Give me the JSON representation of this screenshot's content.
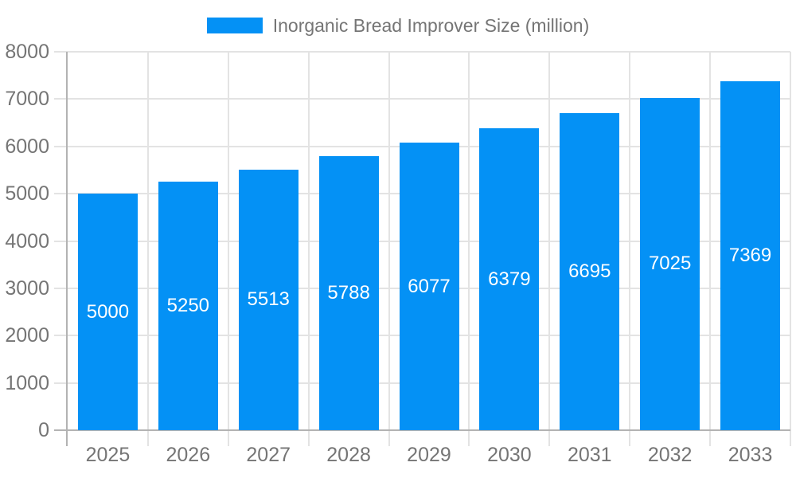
{
  "legend": {
    "label": "Inorganic Bread Improver Size (million)"
  },
  "chart_data": {
    "type": "bar",
    "title": "Inorganic Bread Improver Size (million)",
    "categories": [
      "2025",
      "2026",
      "2027",
      "2028",
      "2029",
      "2030",
      "2031",
      "2032",
      "2033"
    ],
    "values": [
      5000,
      5250,
      5513,
      5788,
      6077,
      6379,
      6695,
      7025,
      7369
    ],
    "xlabel": "",
    "ylabel": "",
    "ylim": [
      0,
      8000
    ],
    "ytick_interval": 1000,
    "yticks": [
      "0",
      "1000",
      "2000",
      "3000",
      "4000",
      "5000",
      "6000",
      "7000",
      "8000"
    ],
    "value_labels": [
      "5000",
      "5250",
      "5513",
      "5788",
      "6077",
      "6379",
      "6695",
      "7025",
      "7369"
    ],
    "value_label_position": "inside-middle",
    "grid": true,
    "legend_position": "top-center",
    "colors": {
      "bar": "#0491f5",
      "value_label_text": "#ffffff",
      "axis_text": "#757575",
      "legend_text": "#757575",
      "gridline": "#e3e3e3",
      "axis_line": "#b3b3b3",
      "background": "#ffffff"
    }
  }
}
